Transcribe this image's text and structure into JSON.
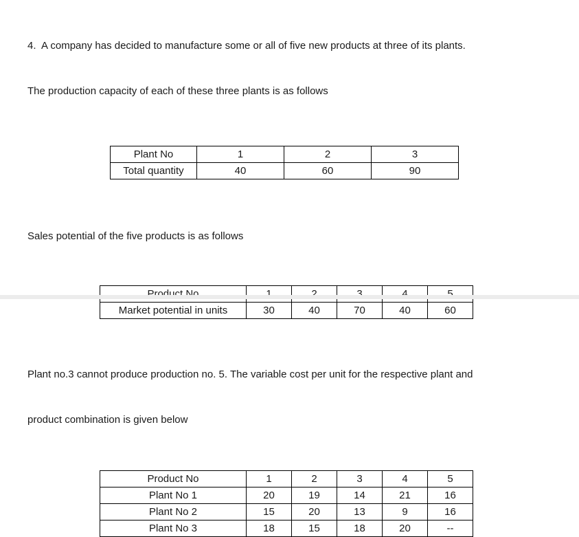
{
  "paragraphs": {
    "intro_line1": "4.  A company has decided to manufacture some or all of five new products at three of its plants.",
    "intro_line2": "The production capacity of each of these three plants is as follows",
    "sales_caption": "Sales potential of the five products is as follows",
    "cost_line1": "Plant no.3 cannot produce production no. 5. The variable cost per unit for the respective plant and",
    "cost_line2": "product combination is given below"
  },
  "tables": {
    "capacity": {
      "header": [
        "Plant No",
        "1",
        "2",
        "3"
      ],
      "row": [
        "Total quantity",
        "40",
        "60",
        "90"
      ]
    },
    "sales": {
      "header": [
        "Product No",
        "1",
        "2",
        "3",
        "4",
        "5"
      ],
      "row": [
        "Market potential in units",
        "30",
        "40",
        "70",
        "40",
        "60"
      ]
    },
    "cost": {
      "header": [
        "Product No",
        "1",
        "2",
        "3",
        "4",
        "5"
      ],
      "rows": [
        [
          "Plant No 1",
          "20",
          "19",
          "14",
          "21",
          "16"
        ],
        [
          "Plant No 2",
          "15",
          "20",
          "13",
          "9",
          "16"
        ],
        [
          "Plant No 3",
          "18",
          "15",
          "18",
          "20",
          "--"
        ]
      ]
    }
  }
}
